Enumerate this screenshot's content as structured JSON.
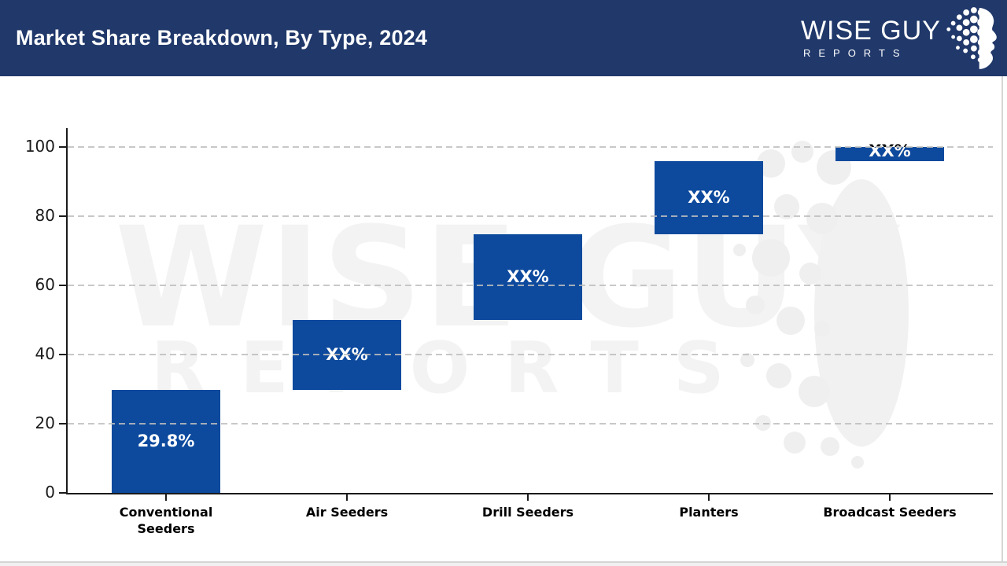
{
  "header": {
    "title": "Market Share Breakdown, By Type, 2024",
    "logo": {
      "wordmark": "WISE GUY",
      "subtitle": "REPORTS"
    }
  },
  "watermark": {
    "wordmark": "WISE GUY",
    "subtitle": "REPORTS"
  },
  "chart_data": {
    "type": "bar",
    "subtype": "waterfall",
    "title": "Market Share Breakdown, By Type, 2024",
    "categories": [
      "Conventional\nSeeders",
      "Air Seeders",
      "Drill Seeders",
      "Planters",
      "Broadcast Seeders"
    ],
    "category_ids": [
      "conventional-seeders",
      "air-seeders",
      "drill-seeders",
      "planters",
      "broadcast-seeders"
    ],
    "segments": [
      {
        "category": "Conventional Seeders",
        "start": 0,
        "end": 29.8,
        "label": "29.8%"
      },
      {
        "category": "Air Seeders",
        "start": 29.8,
        "end": 50,
        "label": "XX%"
      },
      {
        "category": "Drill Seeders",
        "start": 50,
        "end": 74.8,
        "label": "XX%"
      },
      {
        "category": "Planters",
        "start": 74.8,
        "end": 96,
        "label": "XX%"
      },
      {
        "category": "Broadcast Seeders",
        "start": 96,
        "end": 100,
        "label": "XX%"
      }
    ],
    "ylim": [
      0,
      100
    ],
    "yticks": [
      0,
      20,
      40,
      60,
      80,
      100
    ],
    "xlabel": "",
    "ylabel": "",
    "grid": "horizontal-dashed",
    "legend": null,
    "bar_color": "#0d4a9e",
    "bar_label_color": "#ffffff"
  },
  "colors": {
    "header_bg": "#20386a",
    "bar": "#0d4a9e",
    "grid": "#cfcfcf",
    "axis": "#1a1a1a",
    "watermark": "#f3f3f3",
    "title_text": "#ffffff"
  }
}
